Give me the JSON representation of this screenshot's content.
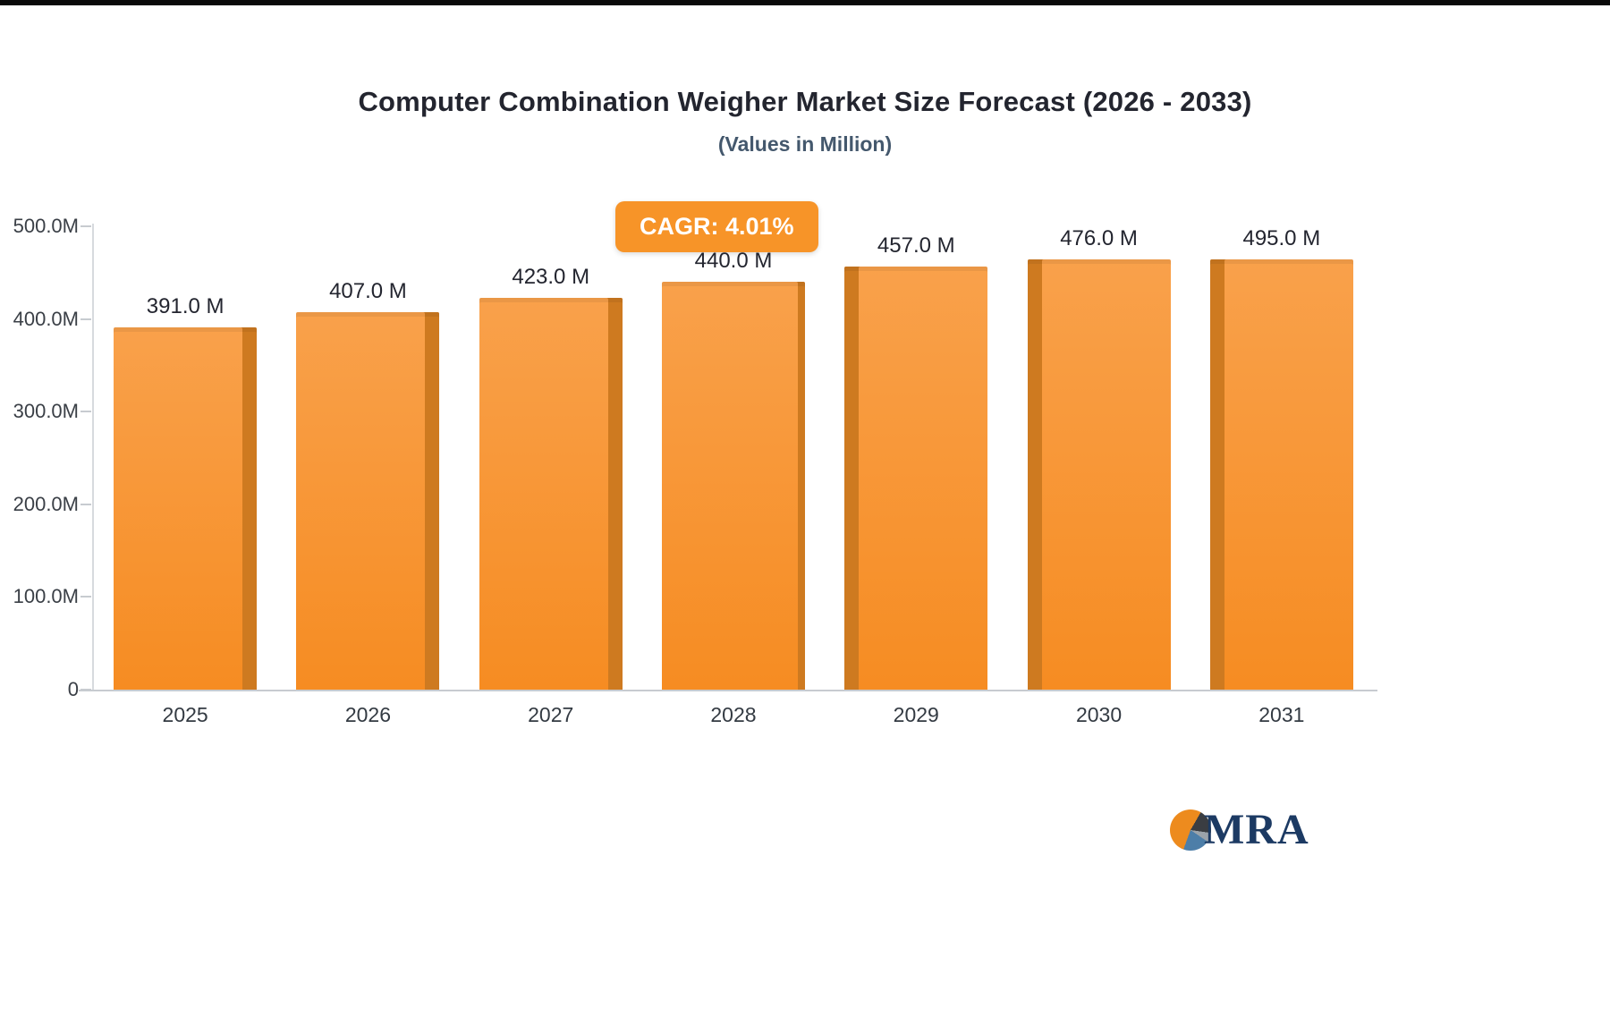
{
  "title": "Computer Combination Weigher Market Size Forecast (2026 - 2033)",
  "subtitle": "(Values in Million)",
  "cagr_label": "CAGR: 4.01%",
  "logo_text": "MRA",
  "colors": {
    "bar": "#F79428",
    "bar_side_shade": "#CE7A20",
    "badge": "#F79428",
    "title_text": "#23252F",
    "logo_navy": "#1C3A63"
  },
  "chart_data": {
    "type": "bar",
    "title": "Computer Combination Weigher Market Size Forecast (2026 - 2033)",
    "subtitle": "(Values in Million)",
    "unit": "Million",
    "categories": [
      "2025",
      "2026",
      "2027",
      "2028",
      "2029",
      "2030",
      "2031"
    ],
    "values": [
      391.0,
      407.0,
      423.0,
      440.0,
      457.0,
      476.0,
      495.0
    ],
    "value_labels": [
      "391.0 M",
      "407.0 M",
      "423.0 M",
      "440.0 M",
      "457.0 M",
      "476.0 M",
      "495.0 M"
    ],
    "cagr": "4.01%",
    "ylim": [
      0,
      500
    ],
    "y_ticks": [
      {
        "value": 500,
        "label": "500.0M"
      },
      {
        "value": 400,
        "label": "400.0M"
      },
      {
        "value": 300,
        "label": "300.0M"
      },
      {
        "value": 200,
        "label": "200.0M"
      },
      {
        "value": 100,
        "label": "100.0M"
      },
      {
        "value": 0,
        "label": "0"
      }
    ],
    "grid": false,
    "legend": false
  }
}
